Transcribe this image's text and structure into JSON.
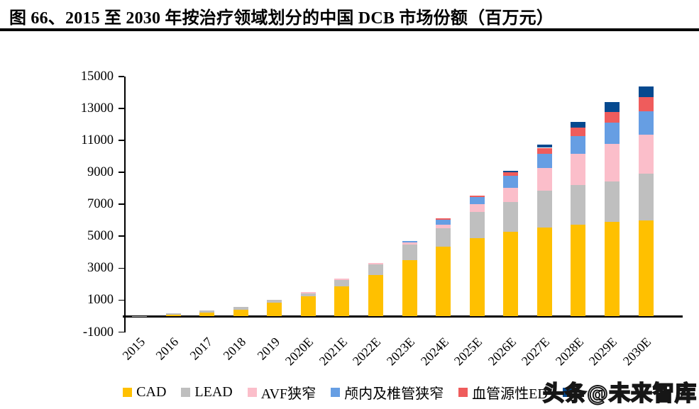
{
  "title": "图 66、2015 至 2030 年按治疗领域划分的中国 DCB 市场份额（百万元）",
  "watermark": "头条@未来智库",
  "chart_data": {
    "type": "bar",
    "stacked": true,
    "title": "图 66、2015 至 2030 年按治疗领域划分的中国 DCB 市场份额（百万元）",
    "xlabel": "",
    "ylabel": "",
    "unit": "百万元",
    "ylim": [
      -1000,
      15000
    ],
    "yticks": [
      15000,
      13000,
      11000,
      9000,
      7000,
      5000,
      3000,
      1000,
      -1000
    ],
    "grid": false,
    "legend_position": "bottom",
    "x_tick_rotation": 45,
    "categories": [
      "2015",
      "2016",
      "2017",
      "2018",
      "2019",
      "2020E",
      "2021E",
      "2022E",
      "2023E",
      "2024E",
      "2025E",
      "2026E",
      "2027E",
      "2028E",
      "2029E",
      "2030E"
    ],
    "series": [
      {
        "name": "CAD",
        "color": "#FFC000",
        "values": [
          15,
          100,
          210,
          420,
          860,
          1250,
          1850,
          2590,
          3500,
          4360,
          4860,
          5270,
          5540,
          5715,
          5905,
          6010
        ]
      },
      {
        "name": "LEAD",
        "color": "#BFBFBF",
        "values": [
          5,
          70,
          130,
          150,
          165,
          150,
          410,
          640,
          990,
          1140,
          1650,
          1870,
          2320,
          2515,
          2545,
          2930
        ]
      },
      {
        "name": "AVF狭窄",
        "color": "#FBBECA",
        "values": [
          0,
          0,
          0,
          0,
          0,
          90,
          90,
          100,
          120,
          220,
          490,
          890,
          1420,
          1925,
          2340,
          2415
        ]
      },
      {
        "name": "颅内及椎管狭窄",
        "color": "#669EE3",
        "values": [
          0,
          0,
          0,
          0,
          0,
          0,
          0,
          0,
          75,
          300,
          440,
          770,
          875,
          1125,
          1320,
          1490
        ]
      },
      {
        "name": "血管源性ED",
        "color": "#EF5C5C",
        "values": [
          0,
          0,
          0,
          0,
          0,
          0,
          0,
          0,
          0,
          90,
          105,
          190,
          385,
          535,
          680,
          860
        ]
      },
      {
        "name": "",
        "color": "#05498F",
        "values": [
          0,
          0,
          0,
          0,
          0,
          0,
          0,
          0,
          0,
          0,
          0,
          105,
          205,
          325,
          620,
          685
        ]
      }
    ]
  }
}
